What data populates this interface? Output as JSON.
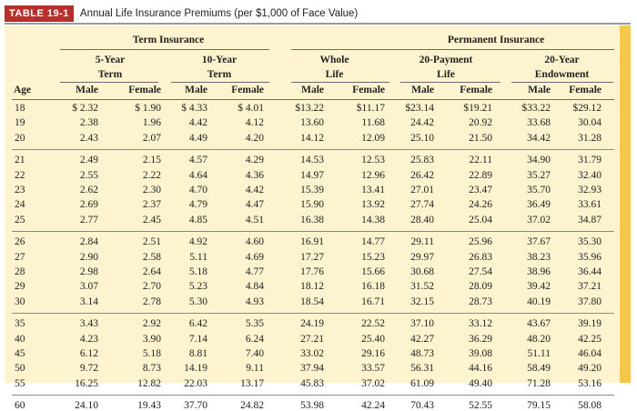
{
  "table": {
    "badge": "TABLE 19-1",
    "title": "Annual Life Insurance Premiums (per $1,000 of Face Value)",
    "groups": {
      "term": "Term Insurance",
      "permanent": "Permanent Insurance"
    },
    "subgroups": [
      {
        "line1": "5-Year",
        "line2": "Term"
      },
      {
        "line1": "10-Year",
        "line2": "Term"
      },
      {
        "line1": "Whole",
        "line2": "Life"
      },
      {
        "line1": "20-Payment",
        "line2": "Life"
      },
      {
        "line1": "20-Year",
        "line2": "Endowment"
      }
    ],
    "age_header": "Age",
    "sex_headers": [
      "Male",
      "Female",
      "Male",
      "Female",
      "Male",
      "Female",
      "Male",
      "Female",
      "Male",
      "Female"
    ],
    "row_groups": [
      [
        [
          "18",
          "$ 2.32",
          "$ 1.90",
          "$ 4.33",
          "$ 4.01",
          "$13.22",
          "$11.17",
          "$23.14",
          "$19.21",
          "$33.22",
          "$29.12"
        ],
        [
          "19",
          "2.38",
          "1.96",
          "4.42",
          "4.12",
          "13.60",
          "11.68",
          "24.42",
          "20.92",
          "33.68",
          "30.04"
        ],
        [
          "20",
          "2.43",
          "2.07",
          "4.49",
          "4.20",
          "14.12",
          "12.09",
          "25.10",
          "21.50",
          "34.42",
          "31.28"
        ]
      ],
      [
        [
          "21",
          "2.49",
          "2.15",
          "4.57",
          "4.29",
          "14.53",
          "12.53",
          "25.83",
          "22.11",
          "34.90",
          "31.79"
        ],
        [
          "22",
          "2.55",
          "2.22",
          "4.64",
          "4.36",
          "14.97",
          "12.96",
          "26.42",
          "22.89",
          "35.27",
          "32.40"
        ],
        [
          "23",
          "2.62",
          "2.30",
          "4.70",
          "4.42",
          "15.39",
          "13.41",
          "27.01",
          "23.47",
          "35.70",
          "32.93"
        ],
        [
          "24",
          "2.69",
          "2.37",
          "4.79",
          "4.47",
          "15.90",
          "13.92",
          "27.74",
          "24.26",
          "36.49",
          "33.61"
        ],
        [
          "25",
          "2.77",
          "2.45",
          "4.85",
          "4.51",
          "16.38",
          "14.38",
          "28.40",
          "25.04",
          "37.02",
          "34.87"
        ]
      ],
      [
        [
          "26",
          "2.84",
          "2.51",
          "4.92",
          "4.60",
          "16.91",
          "14.77",
          "29.11",
          "25.96",
          "37.67",
          "35.30"
        ],
        [
          "27",
          "2.90",
          "2.58",
          "5.11",
          "4.69",
          "17.27",
          "15.23",
          "29.97",
          "26.83",
          "38.23",
          "35.96"
        ],
        [
          "28",
          "2.98",
          "2.64",
          "5.18",
          "4.77",
          "17.76",
          "15.66",
          "30.68",
          "27.54",
          "38.96",
          "36.44"
        ],
        [
          "29",
          "3.07",
          "2.70",
          "5.23",
          "4.84",
          "18.12",
          "16.18",
          "31.52",
          "28.09",
          "39.42",
          "37.21"
        ],
        [
          "30",
          "3.14",
          "2.78",
          "5.30",
          "4.93",
          "18.54",
          "16.71",
          "32.15",
          "28.73",
          "40.19",
          "37.80"
        ]
      ],
      [
        [
          "35",
          "3.43",
          "2.92",
          "6.42",
          "5.35",
          "24.19",
          "22.52",
          "37.10",
          "33.12",
          "43.67",
          "39.19"
        ],
        [
          "40",
          "4.23",
          "3.90",
          "7.14",
          "6.24",
          "27.21",
          "25.40",
          "42.27",
          "36.29",
          "48.20",
          "42.25"
        ],
        [
          "45",
          "6.12",
          "5.18",
          "8.81",
          "7.40",
          "33.02",
          "29.16",
          "48.73",
          "39.08",
          "51.11",
          "46.04"
        ],
        [
          "50",
          "9.72",
          "8.73",
          "14.19",
          "9.11",
          "37.94",
          "33.57",
          "56.31",
          "44.16",
          "58.49",
          "49.20"
        ],
        [
          "55",
          "16.25",
          "12.82",
          "22.03",
          "13.17",
          "45.83",
          "37.02",
          "61.09",
          "49.40",
          "71.28",
          "53.16"
        ]
      ],
      [
        [
          "60",
          "24.10",
          "19.43",
          "37.70",
          "24.82",
          "53.98",
          "42.24",
          "70.43",
          "52.55",
          "79.15",
          "58.08"
        ]
      ]
    ]
  }
}
